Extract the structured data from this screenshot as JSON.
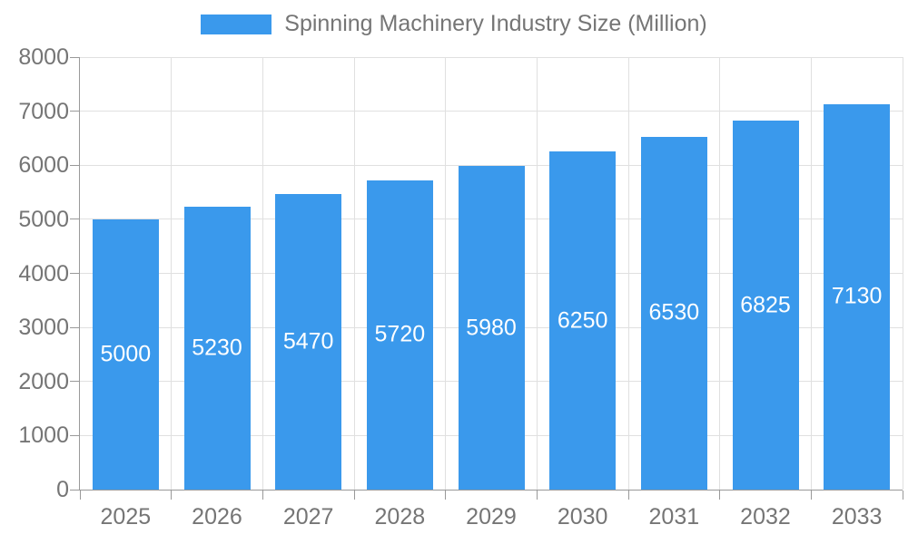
{
  "chart_data": {
    "type": "bar",
    "title": "Spinning Machinery Industry Size (Million)",
    "legend_label": "Spinning Machinery Industry Size (Million)",
    "categories": [
      "2025",
      "2026",
      "2027",
      "2028",
      "2029",
      "2030",
      "2031",
      "2032",
      "2033"
    ],
    "values": [
      5000,
      5230,
      5470,
      5720,
      5980,
      6250,
      6530,
      6825,
      7130
    ],
    "value_labels": [
      "5000",
      "5230",
      "5470",
      "5720",
      "5980",
      "6250",
      "6530",
      "6825",
      "7130"
    ],
    "xlabel": "",
    "ylabel": "",
    "ylim": [
      0,
      8000
    ],
    "ytick_step": 1000,
    "ytick_labels": [
      "0",
      "1000",
      "2000",
      "3000",
      "4000",
      "5000",
      "6000",
      "7000",
      "8000"
    ],
    "grid": "on",
    "legend_position": "top-center",
    "bar_label_position": "center-inside"
  },
  "colors": {
    "bar_fill": "#3A99EC",
    "bar_label_text": "#FFFFFF",
    "gridline": "#E0E0E0",
    "axis_line": "#999999",
    "tick_mark": "#999999",
    "tick_text": "#757575",
    "legend_text": "#757575",
    "background": "#FFFFFF"
  }
}
